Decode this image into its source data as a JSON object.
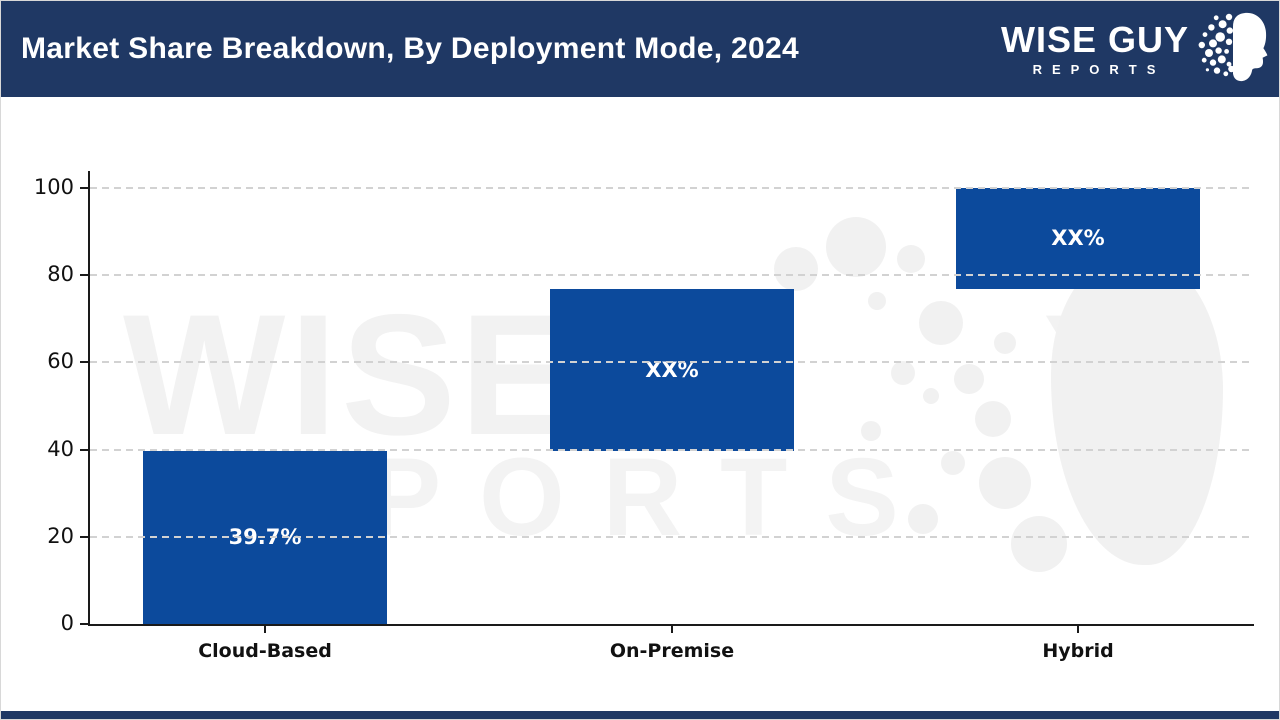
{
  "header": {
    "title": "Market Share Breakdown, By Deployment Mode, 2024",
    "bg_color": "#1F3864",
    "logo": {
      "wordmark": "WISE GUY",
      "sub": "REPORTS",
      "face_icon": "dotted-head-profile"
    }
  },
  "watermark": {
    "line1": "WISE G",
    "line1_tail": "Y",
    "line2": "REPORTS"
  },
  "chart_data": {
    "type": "bar",
    "variant": "floating-waterfall",
    "title": "Market Share Breakdown, By Deployment Mode, 2024",
    "categories": [
      "Cloud-Based",
      "On-Premise",
      "Hybrid"
    ],
    "segments": [
      {
        "category": "Cloud-Based",
        "from": 0,
        "to": 39.7,
        "label": "39.7%"
      },
      {
        "category": "On-Premise",
        "from": 39.7,
        "to": 76.9,
        "label": "XX%"
      },
      {
        "category": "Hybrid",
        "from": 76.9,
        "to": 100,
        "label": "XX%"
      }
    ],
    "y_ticks": [
      0,
      20,
      40,
      60,
      80,
      100
    ],
    "ylim": [
      0,
      100
    ],
    "grid": "horizontal-dashed",
    "legend": "none",
    "bar_color": "#0C4A9C",
    "accent_navy": "#1F3864"
  }
}
